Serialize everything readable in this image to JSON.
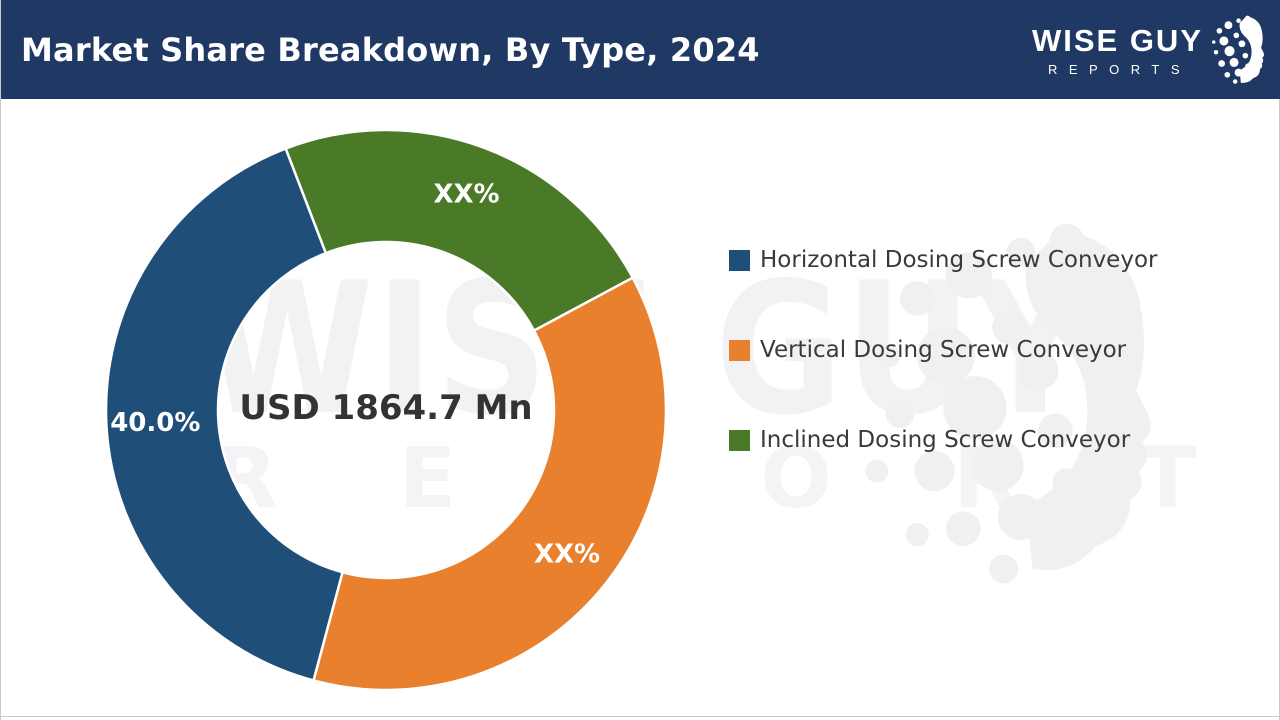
{
  "header": {
    "title": "Market Share Breakdown, By Type, 2024",
    "bg_color": "#203864",
    "logo": {
      "line1": "WISE GUY",
      "line2": "REPORTS"
    }
  },
  "watermark": {
    "line1": "WISE GUY",
    "line2": "R E P O R T S",
    "color": "#f2f2f5"
  },
  "chart_data": {
    "type": "pie",
    "subtype": "donut",
    "title": "Market Share Breakdown, By Type, 2024",
    "center_label": "USD 1864.7 Mn",
    "start_angle_deg": -21,
    "segments": [
      {
        "name": "Horizontal Dosing Screw Conveyor",
        "color": "#1F4E78",
        "value_pct": 40,
        "display_label": "40.0%"
      },
      {
        "name": "Vertical Dosing Screw Conveyor",
        "color": "#E8802D",
        "value_pct": 37,
        "display_label": "XX%"
      },
      {
        "name": "Inclined Dosing Screw Conveyor",
        "color": "#4A7A28",
        "value_pct": 23,
        "display_label": "XX%"
      }
    ],
    "draw_order": [
      2,
      1,
      0
    ],
    "legend_position": "right",
    "legend_entries": [
      "Horizontal Dosing Screw Conveyor",
      "Vertical Dosing Screw Conveyor",
      "Inclined Dosing Screw Conveyor"
    ]
  },
  "colors": {
    "border": "#c9c9c9",
    "center_text": "#333333",
    "legend_text": "#3a3a3a"
  }
}
